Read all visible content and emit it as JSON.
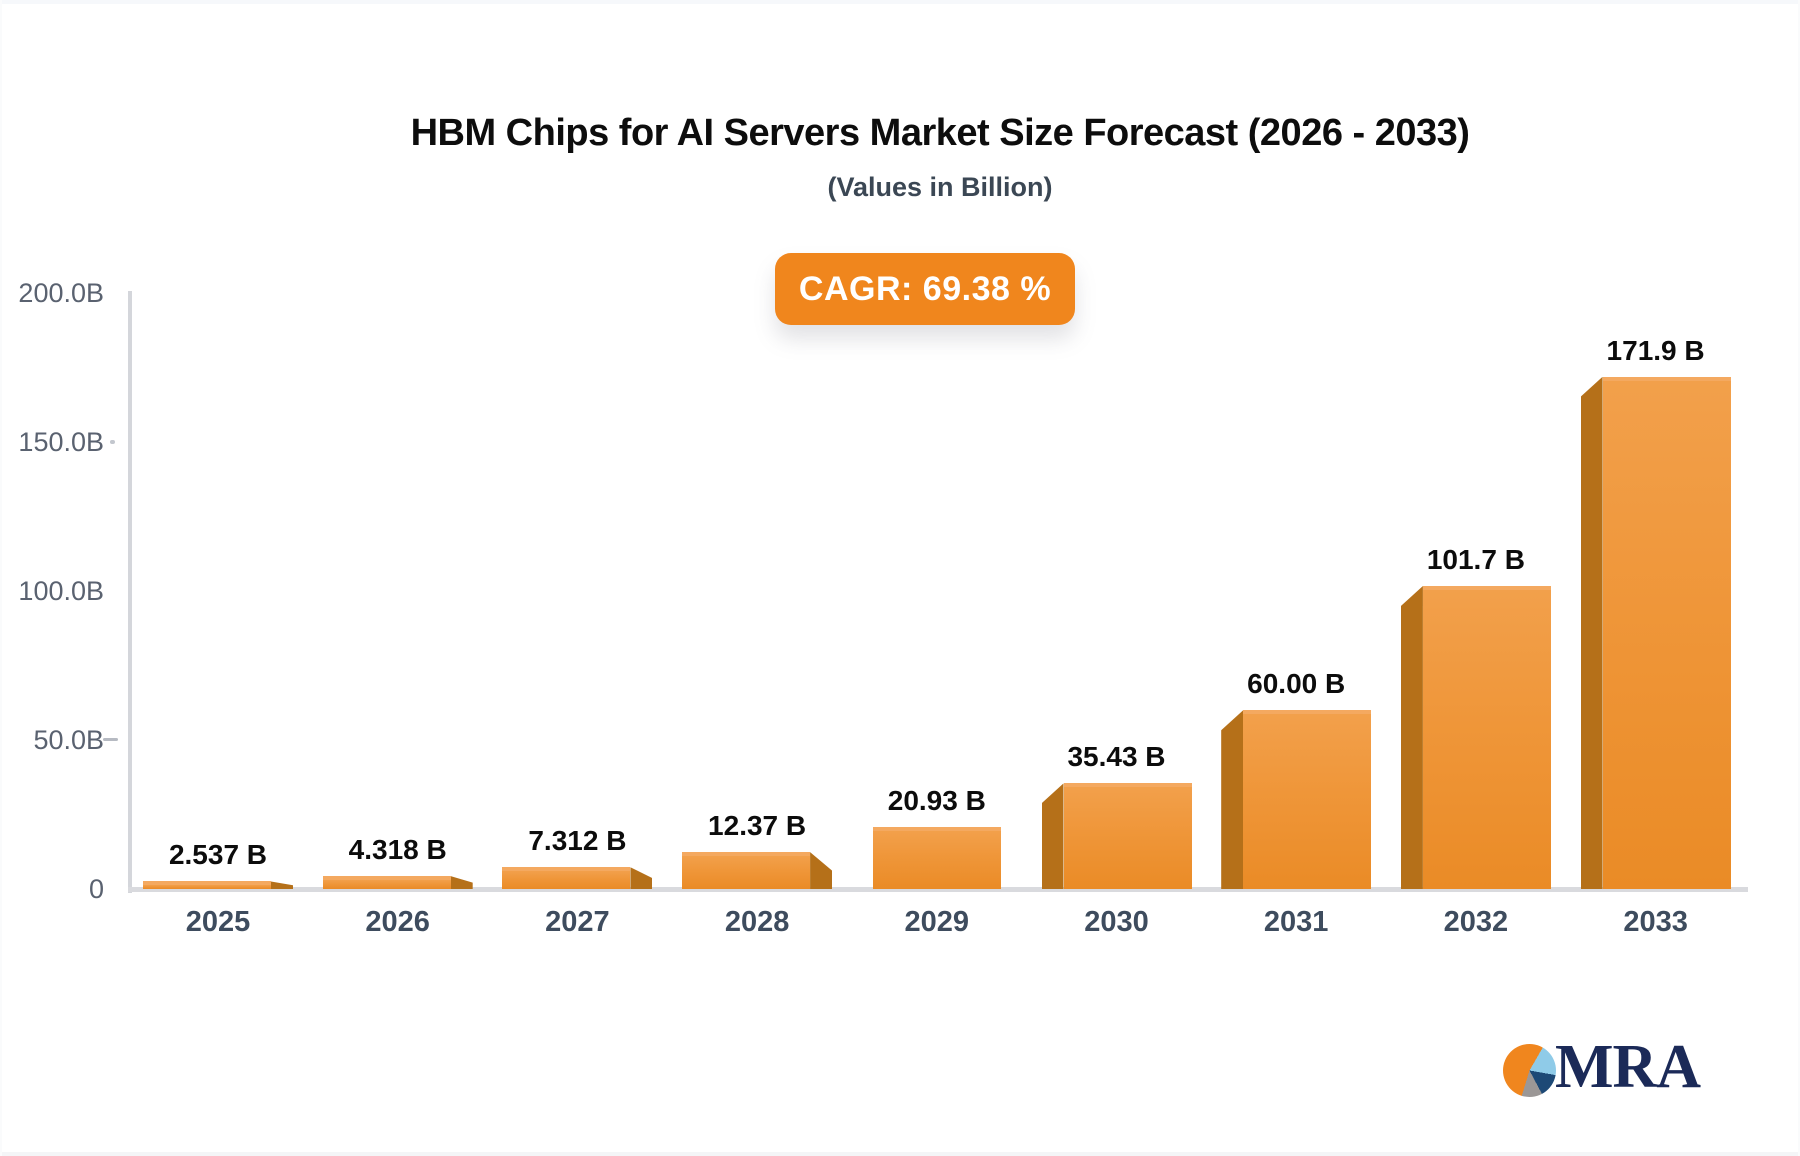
{
  "header": {
    "title": "HBM Chips for AI Servers Market Size Forecast (2026 - 2033)",
    "subtitle": "(Values in Billion)"
  },
  "badge": {
    "label": "CAGR: 69.38 %"
  },
  "chart_data": {
    "type": "bar",
    "title": "HBM Chips for AI Servers Market Size Forecast (2026 - 2033)",
    "subtitle": "(Values in Billion)",
    "categories": [
      "2025",
      "2026",
      "2027",
      "2028",
      "2029",
      "2030",
      "2031",
      "2032",
      "2033"
    ],
    "values": [
      2.537,
      4.318,
      7.312,
      12.37,
      20.93,
      35.43,
      60.0,
      101.7,
      171.9
    ],
    "value_labels": [
      "2.537 B",
      "4.318 B",
      "7.312 B",
      "12.37 B",
      "20.93 B",
      "35.43 B",
      "60.00 B",
      "101.7 B",
      "171.9 B"
    ],
    "xlabel": "",
    "ylabel": "",
    "ylim": [
      0,
      200
    ],
    "y_tick_labels": [
      "200.0B",
      "150.0B",
      "100.0B",
      "50.0B",
      "0"
    ],
    "y_tick_values": [
      200,
      150,
      100,
      50,
      0
    ],
    "grid": "off",
    "legend": "none",
    "annotations": [
      "CAGR: 69.38 %"
    ],
    "colors": {
      "bar_face_top": "#f2a04b",
      "bar_face_bottom": "#ea8b26",
      "bar_side": "#b57019",
      "badge_background": "#f0861d",
      "badge_text": "#ffffff",
      "axis_line": "#d4d6db",
      "tick_label": "#5a6270",
      "category_label": "#3e4c5e",
      "value_label": "#0c0c0c"
    }
  },
  "logo": {
    "text": "MRA",
    "pie_colors": {
      "orange": "#f0861e",
      "light_blue": "#8fcbe8",
      "navy": "#1d4976",
      "gray": "#9b9796"
    }
  }
}
